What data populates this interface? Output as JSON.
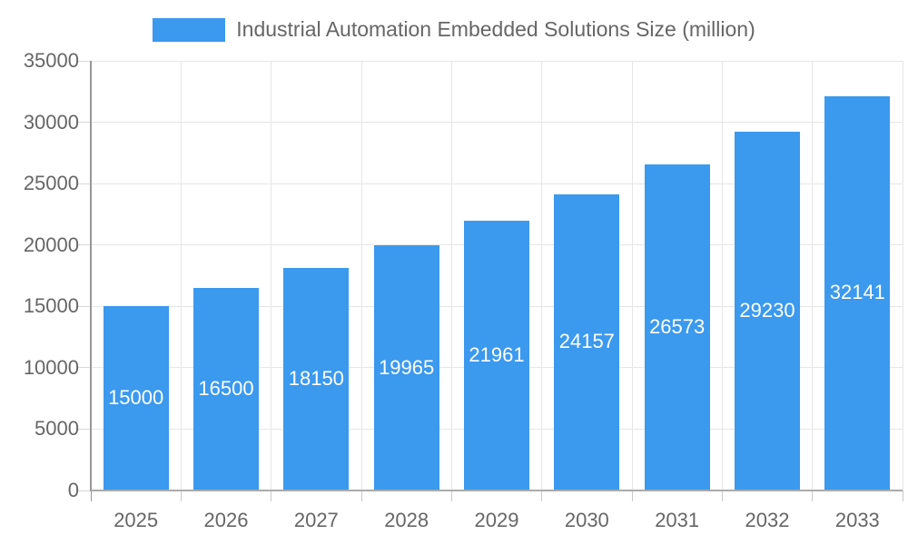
{
  "chart_data": {
    "type": "bar",
    "title": "Industrial Automation Embedded Solutions Size (million)",
    "categories": [
      "2025",
      "2026",
      "2027",
      "2028",
      "2029",
      "2030",
      "2031",
      "2032",
      "2033"
    ],
    "values": [
      15000,
      16500,
      18150,
      19965,
      21961,
      24157,
      26573,
      29230,
      32141
    ],
    "bar_labels": [
      15000,
      16500,
      18150,
      19965,
      21961,
      24157,
      26573,
      29230,
      32141
    ],
    "xlabel": "",
    "ylabel": "",
    "ylim": [
      0,
      35000
    ],
    "yticks": [
      0,
      5000,
      10000,
      15000,
      20000,
      25000,
      30000,
      35000
    ],
    "grid": true,
    "legend_position": "top",
    "bar_label_position": "inside-center"
  },
  "colors": {
    "bar": "#3b99ee",
    "bar_label": "#ffffff",
    "tick_text": "#666666",
    "legend_text": "#666666",
    "grid": "#e6e6e6",
    "axis_y": "#979797",
    "axis_x": "#aaaaaa",
    "tick_mark_y": "#d8d8d8",
    "tick_mark_x": "#c9c9c9",
    "background": "#ffffff"
  }
}
